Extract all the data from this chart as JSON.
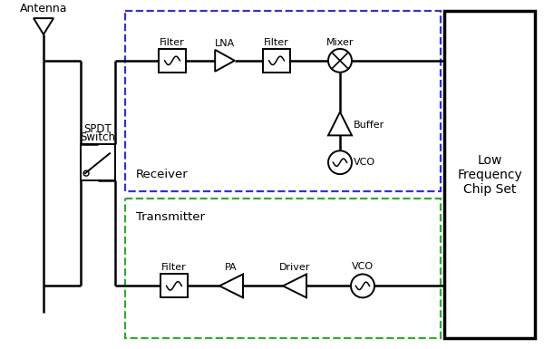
{
  "bg_color": "#ffffff",
  "line_color": "#000000",
  "receiver_box_color": "#3333cc",
  "transmitter_box_color": "#33aa33",
  "antenna_label": "Antenna",
  "spdt_label_1": "SPDT",
  "spdt_label_2": "Switch",
  "receiver_label": "Receiver",
  "transmitter_label": "Transmitter",
  "chipset_label": [
    "Low",
    "Frequency",
    "Chip Set"
  ],
  "rx_components": [
    "Filter",
    "LNA",
    "Filter",
    "Mixer"
  ],
  "tx_components": [
    "Filter",
    "PA",
    "Driver",
    "VCO"
  ],
  "buffer_label": "Buffer",
  "vco_rx_label": "VCO",
  "figsize": [
    6.0,
    3.85
  ],
  "dpi": 100,
  "xlim": [
    0,
    600
  ],
  "ylim": [
    0,
    385
  ],
  "lw_main": 1.8,
  "lw_dash": 1.6,
  "lw_comp": 1.4
}
